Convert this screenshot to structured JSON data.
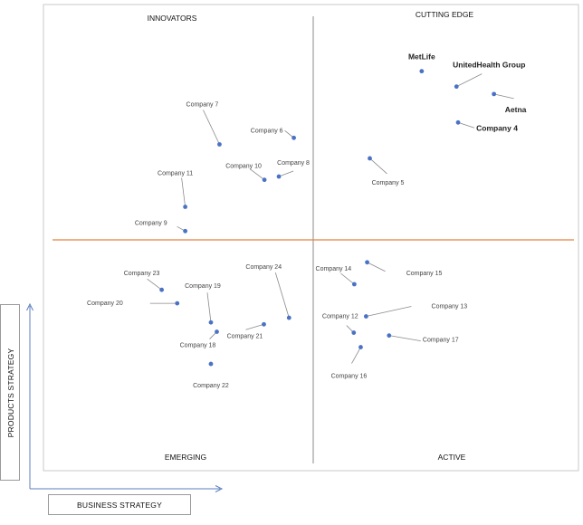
{
  "chart_data": {
    "type": "scatter",
    "xlabel": "BUSINESS STRATEGY",
    "ylabel": "PRODUCTS STRATEGY",
    "quadrants": {
      "top_left": "INNOVATORS",
      "top_right": "CUTTING EDGE",
      "bottom_left": "EMERGING",
      "bottom_right": "ACTIVE"
    },
    "points": [
      {
        "name": "MetLife",
        "x": 0.707,
        "y": 0.857,
        "major": true
      },
      {
        "name": "UnitedHealth Group",
        "x": 0.772,
        "y": 0.824,
        "major": true
      },
      {
        "name": "Aetna",
        "x": 0.842,
        "y": 0.808,
        "major": true
      },
      {
        "name": "Company 4",
        "x": 0.775,
        "y": 0.747,
        "major": true
      },
      {
        "name": "Company 5",
        "x": 0.61,
        "y": 0.67
      },
      {
        "name": "Company 6",
        "x": 0.468,
        "y": 0.714
      },
      {
        "name": "Company 7",
        "x": 0.329,
        "y": 0.7
      },
      {
        "name": "Company 8",
        "x": 0.44,
        "y": 0.631
      },
      {
        "name": "Company 10",
        "x": 0.413,
        "y": 0.624
      },
      {
        "name": "Company 11",
        "x": 0.265,
        "y": 0.566
      },
      {
        "name": "Company 9",
        "x": 0.265,
        "y": 0.514
      },
      {
        "name": "Company 23",
        "x": 0.221,
        "y": 0.388
      },
      {
        "name": "Company 20",
        "x": 0.25,
        "y": 0.359
      },
      {
        "name": "Company 19",
        "x": 0.313,
        "y": 0.318
      },
      {
        "name": "Company 24",
        "x": 0.459,
        "y": 0.328
      },
      {
        "name": "Company 21",
        "x": 0.412,
        "y": 0.314
      },
      {
        "name": "Company 18",
        "x": 0.324,
        "y": 0.298
      },
      {
        "name": "Company 22",
        "x": 0.313,
        "y": 0.229
      },
      {
        "name": "Company 14",
        "x": 0.581,
        "y": 0.4
      },
      {
        "name": "Company 15",
        "x": 0.605,
        "y": 0.447
      },
      {
        "name": "Company 13",
        "x": 0.603,
        "y": 0.331
      },
      {
        "name": "Company 12",
        "x": 0.58,
        "y": 0.296
      },
      {
        "name": "Company 17",
        "x": 0.646,
        "y": 0.29
      },
      {
        "name": "Company 16",
        "x": 0.593,
        "y": 0.265
      }
    ]
  }
}
